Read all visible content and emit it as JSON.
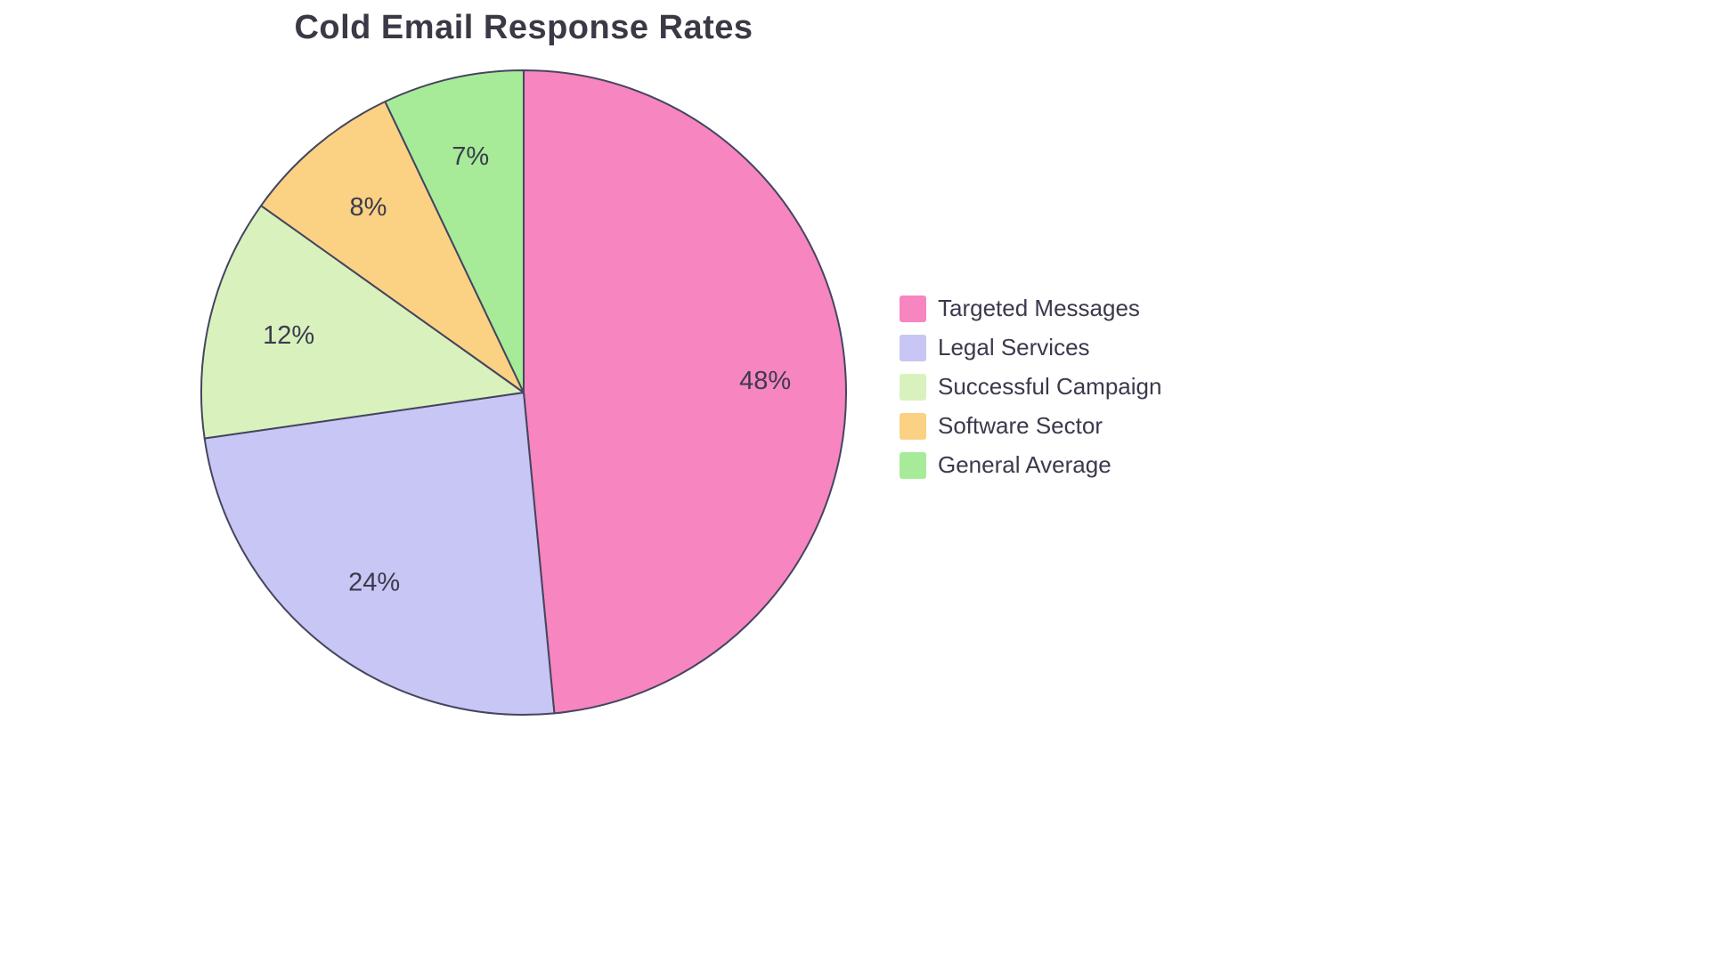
{
  "chart_data": {
    "type": "pie",
    "title": "Cold Email Response Rates",
    "labels": [
      "Targeted Messages",
      "Legal Services",
      "Successful Campaign",
      "Software Sector",
      "General Average"
    ],
    "values": [
      48,
      24,
      12,
      8,
      7
    ],
    "value_labels": [
      "48%",
      "24%",
      "12%",
      "8%",
      "7%"
    ],
    "colors": [
      "#F785BF",
      "#C8C6F4",
      "#D9F2BD",
      "#FBD283",
      "#A7EB99"
    ],
    "stroke_color": "#45455F",
    "label_color": "#3B3B4D",
    "title_color": "#3A3A46",
    "legend_position": "right",
    "start_angle_deg": -90,
    "direction": "clockwise",
    "grid": false
  }
}
